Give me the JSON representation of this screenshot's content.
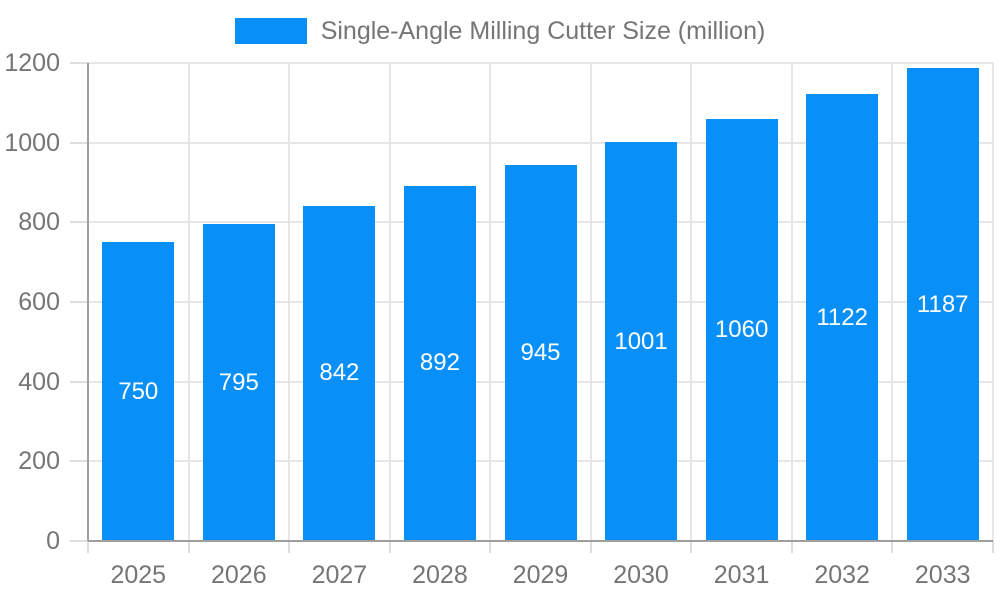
{
  "legend": {
    "label": "Single-Angle Milling Cutter Size (million)"
  },
  "chart_data": {
    "type": "bar",
    "title": "Single-Angle Milling Cutter Size (million)",
    "series_name": "Single-Angle Milling Cutter Size (million)",
    "categories": [
      "2025",
      "2026",
      "2027",
      "2028",
      "2029",
      "2030",
      "2031",
      "2032",
      "2033"
    ],
    "values": [
      750,
      795,
      842,
      892,
      945,
      1001,
      1060,
      1122,
      1187
    ],
    "xlabel": "",
    "ylabel": "",
    "ylim": [
      0,
      1200
    ],
    "yticks": [
      0,
      200,
      400,
      600,
      800,
      1000,
      1200
    ],
    "grid": true,
    "legend_position": "top-center",
    "bar_color": "#0990F8",
    "value_label_color": "#FFFFFF",
    "grid_color": "#E6E6E6",
    "tick_color": "#DEDEDE",
    "axis_color": "#9E9E9E",
    "text_color": "#757575"
  }
}
